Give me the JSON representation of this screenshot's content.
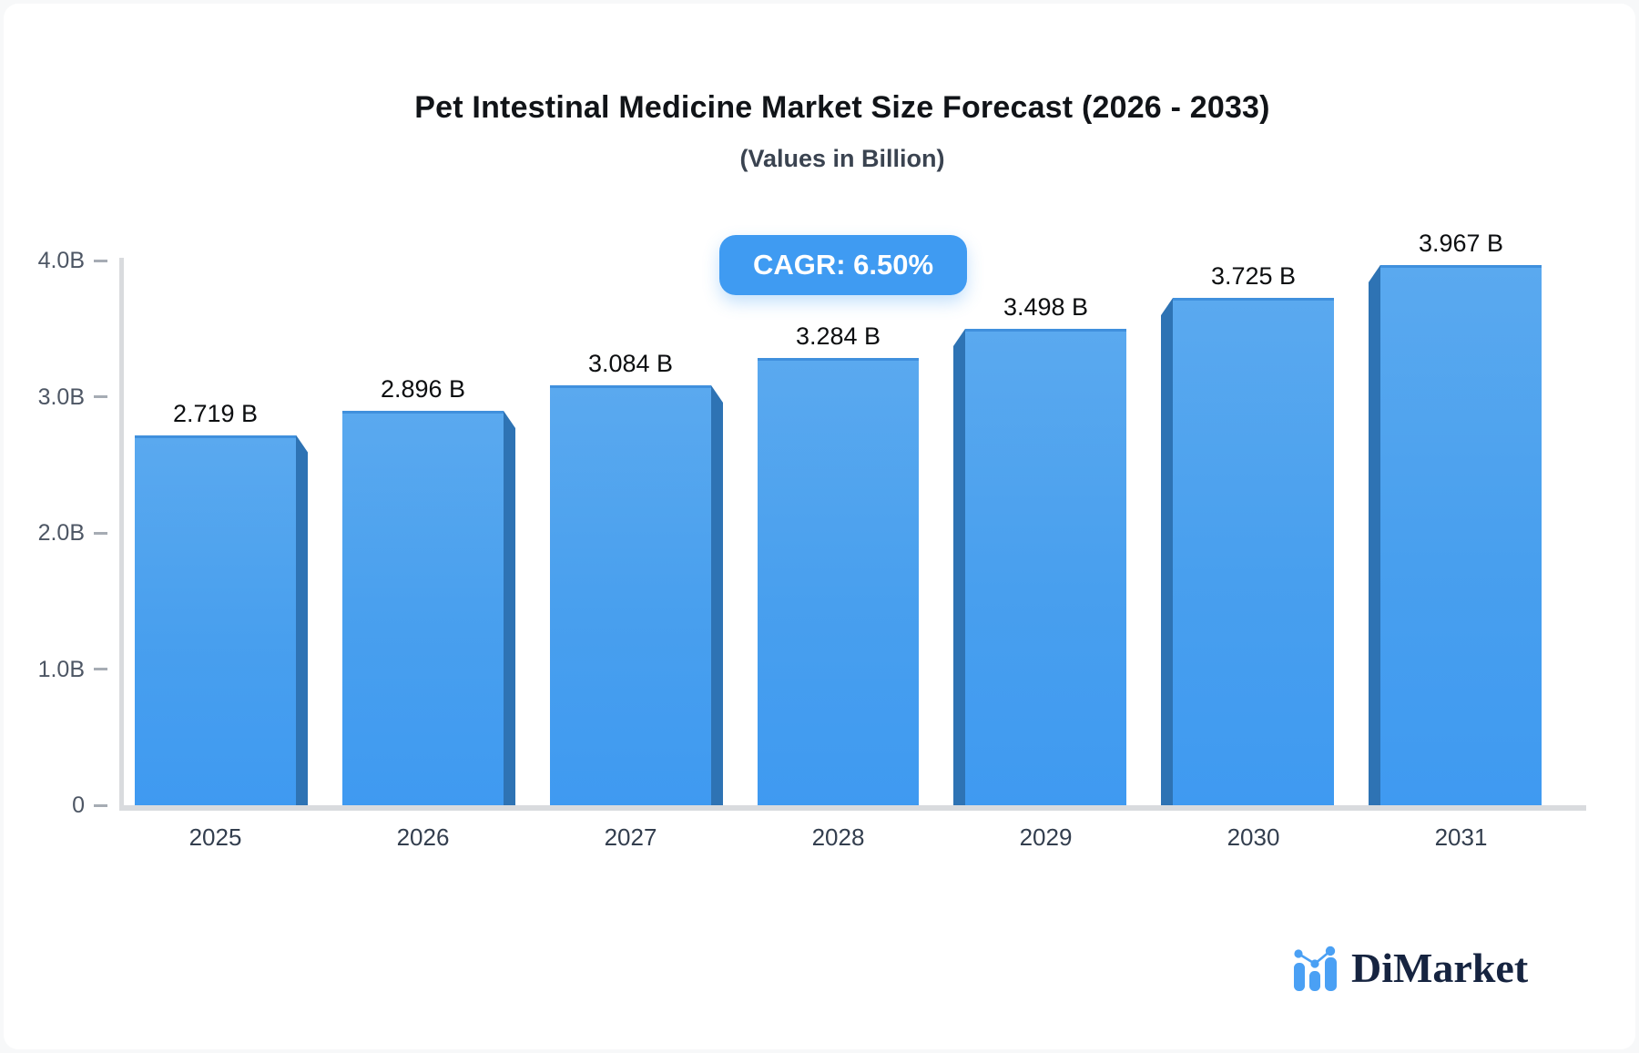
{
  "page": {
    "background": "#f7f8f9",
    "card_background": "#ffffff"
  },
  "header": {
    "title": "Pet Intestinal Medicine Market Size Forecast (2026 - 2033)",
    "subtitle": "(Values in Billion)"
  },
  "badge": {
    "label": "CAGR: 6.50%",
    "color": "#3f9bf2",
    "text_color": "#ffffff"
  },
  "chart_data": {
    "type": "bar",
    "title": "Pet Intestinal Medicine Market Size Forecast (2026 - 2033)",
    "subtitle": "(Values in Billion)",
    "cagr": "6.50%",
    "categories": [
      "2025",
      "2026",
      "2027",
      "2028",
      "2029",
      "2030",
      "2031"
    ],
    "values": [
      2.719,
      2.896,
      3.084,
      3.284,
      3.498,
      3.725,
      3.967
    ],
    "value_labels": [
      "2.719 B",
      "2.896 B",
      "3.084 B",
      "3.284 B",
      "3.498 B",
      "3.725 B",
      "3.967 B"
    ],
    "unit": "Billion",
    "xlabel": "",
    "ylabel": "",
    "ylim": [
      0,
      4.0
    ],
    "yticks": [
      {
        "label": "4.0B",
        "value": 4.0
      },
      {
        "label": "3.0B",
        "value": 3.0
      },
      {
        "label": "2.0B",
        "value": 2.0
      },
      {
        "label": "1.0B",
        "value": 1.0
      },
      {
        "label": "0",
        "value": 0.0
      }
    ],
    "grid": false,
    "legend": null,
    "bar_style": "3d-perspective",
    "bar_face_color_top": "#5aa9ef",
    "bar_face_color_bottom": "#3f9af1",
    "bar_side_color": "#2e73b4",
    "axis_color": "#d9dbde",
    "tick_color": "#a6acb4",
    "y_label_color": "#4d5664",
    "x_label_color": "#333e4e"
  },
  "logo": {
    "text": "DiMarket",
    "icon": "dimarket-bars-icon",
    "icon_color": "#4aa0f4",
    "text_color": "#162440"
  }
}
